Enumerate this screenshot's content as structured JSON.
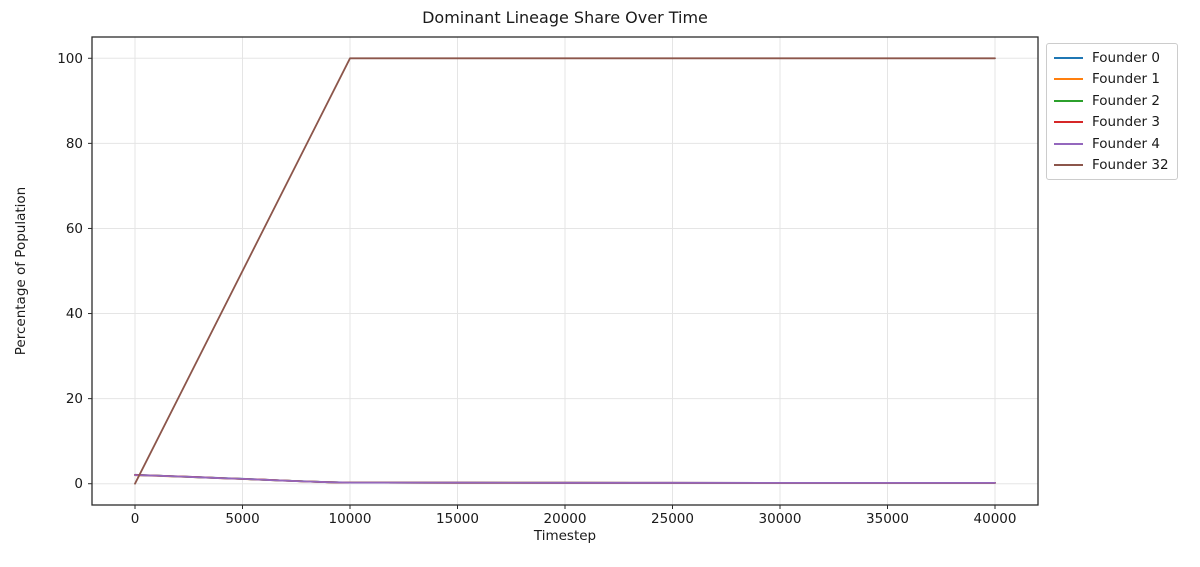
{
  "figure": {
    "background": "#ffffff"
  },
  "chart_data": {
    "type": "line",
    "title": "Dominant Lineage Share Over Time",
    "xlabel": "Timestep",
    "ylabel": "Percentage of Population",
    "xlim": [
      -2000,
      42000
    ],
    "ylim": [
      -5,
      105
    ],
    "grid": true,
    "legend_position": "outside-right",
    "xticks": [
      {
        "value": 0,
        "label": "0"
      },
      {
        "value": 5000,
        "label": "5000"
      },
      {
        "value": 10000,
        "label": "10000"
      },
      {
        "value": 15000,
        "label": "15000"
      },
      {
        "value": 20000,
        "label": "20000"
      },
      {
        "value": 25000,
        "label": "25000"
      },
      {
        "value": 30000,
        "label": "30000"
      },
      {
        "value": 35000,
        "label": "35000"
      },
      {
        "value": 40000,
        "label": "40000"
      }
    ],
    "yticks": [
      {
        "value": 0,
        "label": "0"
      },
      {
        "value": 20,
        "label": "20"
      },
      {
        "value": 40,
        "label": "40"
      },
      {
        "value": 60,
        "label": "60"
      },
      {
        "value": 80,
        "label": "80"
      },
      {
        "value": 100,
        "label": "100"
      }
    ],
    "series": [
      {
        "name": "Founder 0",
        "color": "#1f77b4",
        "points": [
          [
            0,
            2.1
          ],
          [
            1000,
            1.92
          ],
          [
            2000,
            1.73
          ],
          [
            3000,
            1.54
          ],
          [
            4000,
            1.34
          ],
          [
            5000,
            1.15
          ],
          [
            6000,
            0.95
          ],
          [
            7000,
            0.74
          ],
          [
            8000,
            0.54
          ],
          [
            9000,
            0.38
          ],
          [
            10000,
            0.28
          ],
          [
            15000,
            0.24
          ],
          [
            20000,
            0.22
          ],
          [
            25000,
            0.21
          ],
          [
            30000,
            0.2
          ],
          [
            35000,
            0.2
          ],
          [
            40000,
            0.2
          ]
        ]
      },
      {
        "name": "Founder 1",
        "color": "#ff7f0e",
        "points": [
          [
            0,
            2.0
          ],
          [
            1000,
            1.86
          ],
          [
            2000,
            1.68
          ],
          [
            3000,
            1.49
          ],
          [
            4000,
            1.3
          ],
          [
            5000,
            1.12
          ],
          [
            6000,
            0.92
          ],
          [
            7000,
            0.72
          ],
          [
            8000,
            0.52
          ],
          [
            9000,
            0.36
          ],
          [
            10000,
            0.26
          ],
          [
            15000,
            0.22
          ],
          [
            20000,
            0.21
          ],
          [
            25000,
            0.2
          ],
          [
            30000,
            0.19
          ],
          [
            35000,
            0.19
          ],
          [
            40000,
            0.19
          ]
        ]
      },
      {
        "name": "Founder 2",
        "color": "#2ca02c",
        "points": [
          [
            0,
            2.05
          ],
          [
            1000,
            1.9
          ],
          [
            2000,
            1.71
          ],
          [
            3000,
            1.52
          ],
          [
            4000,
            1.32
          ],
          [
            5000,
            1.13
          ],
          [
            6000,
            0.93
          ],
          [
            7000,
            0.73
          ],
          [
            8000,
            0.53
          ],
          [
            9000,
            0.37
          ],
          [
            10000,
            0.27
          ],
          [
            15000,
            0.23
          ],
          [
            20000,
            0.21
          ],
          [
            25000,
            0.2
          ],
          [
            30000,
            0.2
          ],
          [
            35000,
            0.19
          ],
          [
            40000,
            0.19
          ]
        ]
      },
      {
        "name": "Founder 3",
        "color": "#d62728",
        "points": [
          [
            0,
            2.08
          ],
          [
            1000,
            1.9
          ],
          [
            2000,
            1.72
          ],
          [
            3000,
            1.53
          ],
          [
            4000,
            1.33
          ],
          [
            5000,
            1.14
          ],
          [
            6000,
            0.94
          ],
          [
            7000,
            0.73
          ],
          [
            8000,
            0.53
          ],
          [
            9000,
            0.37
          ],
          [
            10000,
            0.27
          ],
          [
            15000,
            0.23
          ],
          [
            20000,
            0.22
          ],
          [
            25000,
            0.21
          ],
          [
            30000,
            0.2
          ],
          [
            35000,
            0.2
          ],
          [
            40000,
            0.2
          ]
        ]
      },
      {
        "name": "Founder 4",
        "color": "#9467bd",
        "points": [
          [
            0,
            2.03
          ],
          [
            1000,
            1.88
          ],
          [
            2000,
            1.7
          ],
          [
            3000,
            1.5
          ],
          [
            4000,
            1.31
          ],
          [
            5000,
            1.13
          ],
          [
            6000,
            0.93
          ],
          [
            7000,
            0.72
          ],
          [
            8000,
            0.52
          ],
          [
            9000,
            0.36
          ],
          [
            10000,
            0.26
          ],
          [
            15000,
            0.23
          ],
          [
            20000,
            0.21
          ],
          [
            25000,
            0.2
          ],
          [
            30000,
            0.2
          ],
          [
            35000,
            0.2
          ],
          [
            40000,
            0.2
          ]
        ]
      },
      {
        "name": "Founder 32",
        "color": "#8c564b",
        "points": [
          [
            0,
            0
          ],
          [
            10000,
            100
          ],
          [
            40000,
            100
          ]
        ]
      }
    ]
  },
  "style": {
    "grid_color": "#e5e5e5",
    "spine_color": "#2b2b2b",
    "tick_color": "#2b2b2b",
    "text_color": "#1a1a1a",
    "legend_border_color": "#cccccc"
  }
}
